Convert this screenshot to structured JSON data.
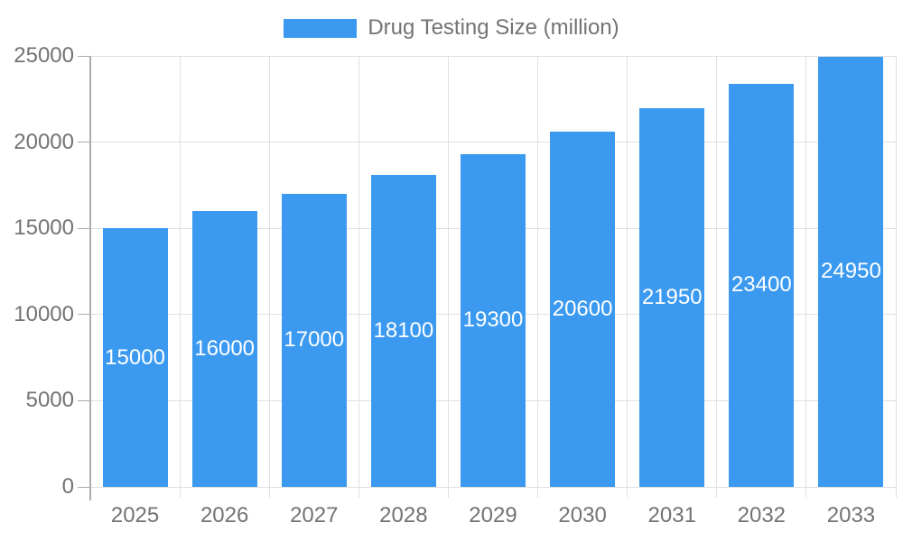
{
  "legend": {
    "label": "Drug Testing Size (million)"
  },
  "colors": {
    "bar": "#3b9af0",
    "grid": "#e0e0e0",
    "axis_line": "#acacac",
    "x_tick": "#e0e0e0",
    "axis_label_text": "#737373",
    "legend_text": "#737373",
    "data_label_text": "#ffffff",
    "background": "#ffffff"
  },
  "chart_data": {
    "type": "bar",
    "title": "Drug Testing Size (million)",
    "categories": [
      "2025",
      "2026",
      "2027",
      "2028",
      "2029",
      "2030",
      "2031",
      "2032",
      "2033"
    ],
    "series": [
      {
        "name": "Drug Testing Size (million)",
        "values": [
          15000,
          16000,
          17000,
          18100,
          19300,
          20600,
          21950,
          23400,
          24950
        ]
      }
    ],
    "data_labels": [
      "15000",
      "16000",
      "17000",
      "18100",
      "19300",
      "20600",
      "21950",
      "23400",
      "24950"
    ],
    "xlabel": "",
    "ylabel": "",
    "ylim": [
      0,
      25000
    ],
    "ytick_interval": 5000,
    "yticks": [
      0,
      5000,
      10000,
      15000,
      20000,
      25000
    ],
    "ytick_labels": [
      "0",
      "5000",
      "10000",
      "15000",
      "20000",
      "25000"
    ],
    "grid": true,
    "grid_vertical_at_category_boundaries": true,
    "legend_position": "top-center",
    "data_label_position": "inside-center"
  }
}
